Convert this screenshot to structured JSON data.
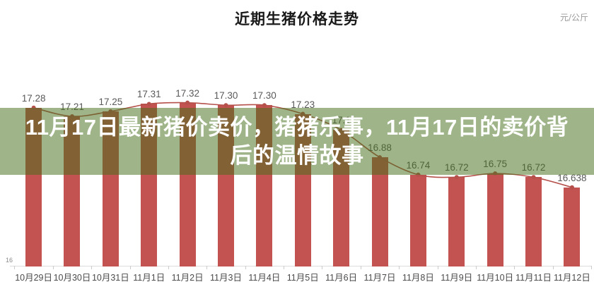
{
  "chart": {
    "title": "近期生猪价格走势",
    "unit_label": "元/公斤",
    "y_axis_min_label": "16"
  },
  "banner": {
    "line1": "11月17日最新猪价卖价，猪猪乐事，11月17日的卖价背",
    "line2": "后的温情故事",
    "full_title": "11月17日最新猪价卖价，猪猪乐事，11月17日的卖价背后的温情故事"
  },
  "colors": {
    "bar": "#c25351",
    "line": "#b5504b",
    "marker": "#b5504b",
    "value_label": "#595959",
    "axis_label": "#4a4a4a",
    "axis_line": "#dcdcdc",
    "banner_overlay": "rgba(70,114,28,0.52)",
    "banner_text": "#ffffff"
  },
  "chart_data": {
    "type": "bar",
    "has_line_overlay": true,
    "title": "近期生猪价格走势",
    "ylabel": "元/公斤",
    "categories": [
      "10月29日",
      "10月30日",
      "10月31日",
      "11月1日",
      "11月2日",
      "11月3日",
      "11月4日",
      "11月5日",
      "11月6日",
      "11月7日",
      "11月8日",
      "11月9日",
      "11月10日",
      "11月11日",
      "11月12日"
    ],
    "values": [
      17.28,
      17.21,
      17.25,
      17.31,
      17.32,
      17.3,
      17.3,
      17.23,
      17.1,
      16.88,
      16.74,
      16.72,
      16.75,
      16.72,
      16.638
    ],
    "value_labels": [
      "17.28",
      "17.21",
      "17.25",
      "17.31",
      "17.32",
      "17.30",
      "17.30",
      "17.23",
      "17.1",
      "16.88",
      "16.74",
      "16.72",
      "16.75",
      "16.72",
      "16.638"
    ],
    "ylim": [
      16,
      17.5
    ],
    "grid": false,
    "legend": false
  }
}
